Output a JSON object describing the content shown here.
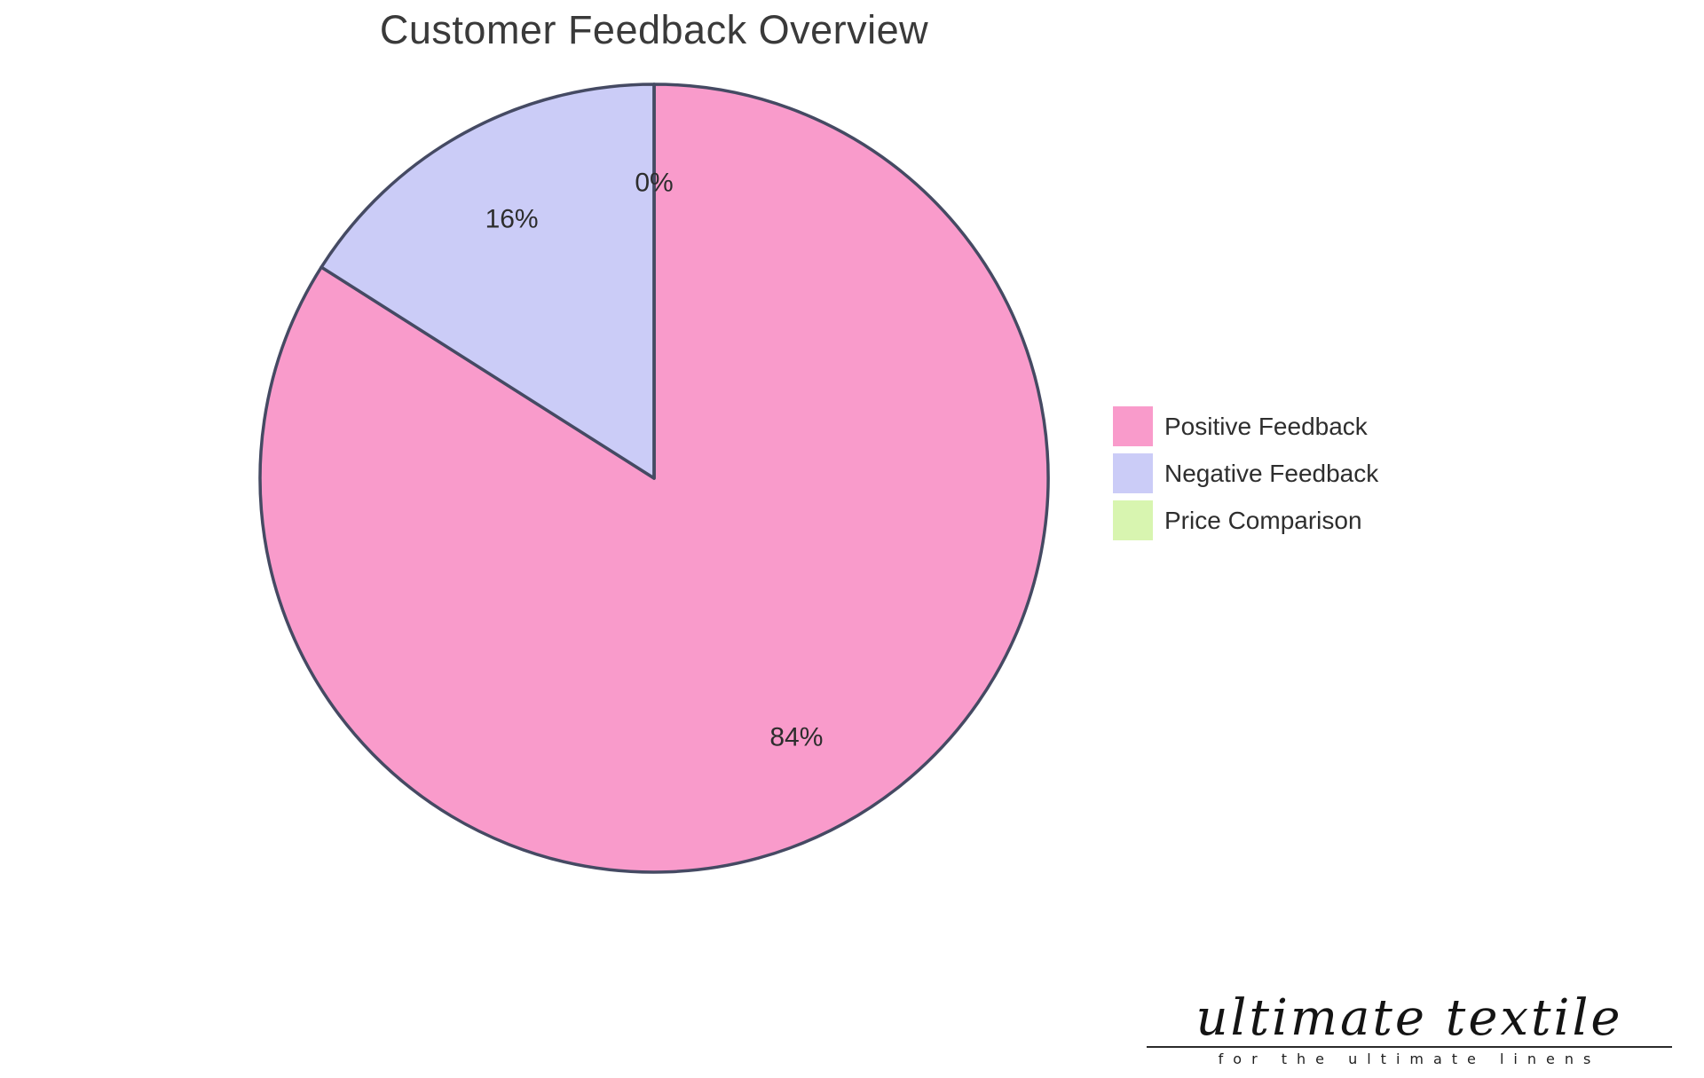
{
  "page": {
    "background": "#ffffff"
  },
  "chart_data": {
    "type": "pie",
    "title": "Customer Feedback Overview",
    "labels": [
      "Positive Feedback",
      "Negative Feedback",
      "Price Comparison"
    ],
    "values": [
      84,
      16,
      0
    ],
    "slice_labels": [
      "84%",
      "16%",
      "0%"
    ],
    "colors": [
      "#F99BCB",
      "#CBCCF7",
      "#D8F5B0"
    ],
    "outline_color": "#454A63",
    "label_color": "#2d2d2d",
    "start_angle_deg": 0,
    "direction": "clockwise",
    "legend_position": "right",
    "legend": [
      "Positive Feedback",
      "Negative Feedback",
      "Price Comparison"
    ]
  },
  "branding": {
    "logo_text": "ultimate textile",
    "tagline": "for the ultimate linens"
  }
}
